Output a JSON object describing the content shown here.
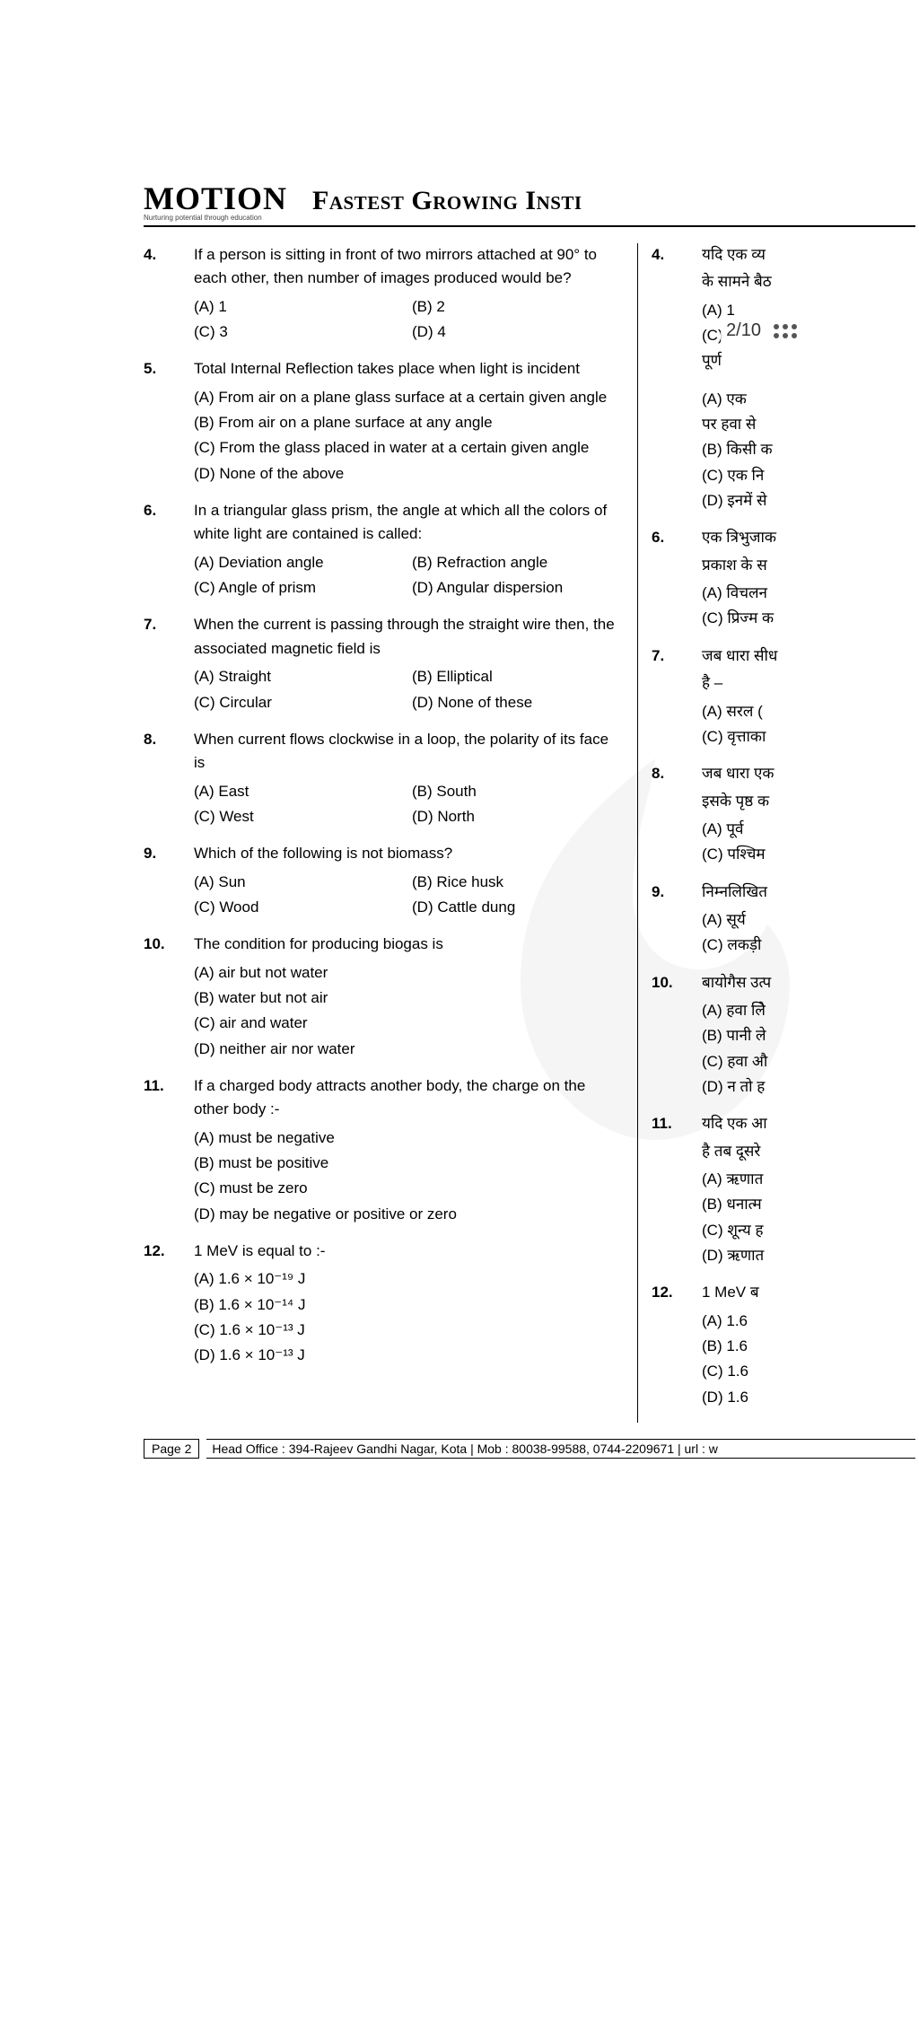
{
  "logo": {
    "main": "MOTION",
    "sub": "Nurturing potential through education"
  },
  "tagline": "Fastest Growing Insti",
  "page_indicator": "2/10",
  "footer": {
    "page_label": "Page 2",
    "text": "Head Office : 394-Rajeev Gandhi Nagar, Kota |  Mob : 80038-99588, 0744-2209671 |  url : w"
  },
  "left": [
    {
      "n": "4.",
      "stem": "If a person is sitting in front of two mirrors attached at 90° to each other, then number of images produced would be?",
      "opts": [
        "(A) 1",
        "(B) 2",
        "(C) 3",
        "(D) 4"
      ],
      "layout": "2"
    },
    {
      "n": "5.",
      "stem": "Total Internal Reflection takes place when light is incident",
      "opts": [
        "(A) From air on a plane glass surface at a certain given angle",
        "(B) From air on a plane surface at any angle",
        "(C) From the glass placed in water at a certain given angle",
        "(D) None of the above"
      ],
      "layout": "1"
    },
    {
      "n": "6.",
      "stem": "In a triangular glass prism, the angle at which all the colors of white light are contained is called:",
      "opts": [
        "(A) Deviation angle",
        "(B) Refraction angle",
        "(C) Angle of prism",
        "(D) Angular dispersion"
      ],
      "layout": "2"
    },
    {
      "n": "7.",
      "stem": "When the current is passing through the straight wire then, the associated magnetic field is",
      "opts": [
        "(A) Straight",
        "(B) Elliptical",
        "(C) Circular",
        "(D) None of these"
      ],
      "layout": "2"
    },
    {
      "n": "8.",
      "stem": "When current flows clockwise in a loop, the polarity of its face is",
      "opts": [
        "(A) East",
        "(B) South",
        "(C) West",
        "(D) North"
      ],
      "layout": "2"
    },
    {
      "n": "9.",
      "stem": "Which of the following is not biomass?",
      "opts": [
        "(A) Sun",
        "(B) Rice husk",
        "(C) Wood",
        "(D) Cattle dung"
      ],
      "layout": "2"
    },
    {
      "n": "10.",
      "stem": "The condition for producing biogas is",
      "opts": [
        "(A) air but not water",
        "(B) water but not air",
        "(C) air and water",
        "(D) neither air nor water"
      ],
      "layout": "1"
    },
    {
      "n": "11.",
      "stem": "If a charged body attracts another body, the charge on the other body :-",
      "opts": [
        "(A) must be negative",
        "(B) must be positive",
        "(C) must be zero",
        "(D) may be negative or positive or zero"
      ],
      "layout": "1"
    },
    {
      "n": "12.",
      "stem": "1 MeV is equal to :-",
      "opts": [
        "(A) 1.6 × 10⁻¹⁹ J",
        "(B) 1.6 × 10⁻¹⁴ J",
        "(C) 1.6 × 10⁻¹³ J",
        "(D) 1.6 × 10⁻¹³ J"
      ],
      "layout": "1"
    }
  ],
  "right": [
    {
      "n": "4.",
      "stem": "यदि एक व्य",
      "post": "के सामने बैठ",
      "opts": [
        "(A) 1",
        "(C)"
      ],
      "layout": "1",
      "trail": "पूर्ण"
    },
    {
      "n": "",
      "stem": "",
      "opts": [
        "(A) एक",
        "पर हवा से",
        "(B) किसी क",
        "(C) एक नि",
        "(D) इनमें से"
      ],
      "layout": "1"
    },
    {
      "n": "6.",
      "stem": "एक त्रिभुजाक",
      "post": "प्रकाश के स",
      "opts": [
        "(A) विचलन",
        "(C) प्रिज्म क"
      ],
      "layout": "1"
    },
    {
      "n": "7.",
      "stem": "जब धारा सीध",
      "post": "है –",
      "opts": [
        "(A) सरल (",
        "(C) वृत्ताका"
      ],
      "layout": "1"
    },
    {
      "n": "8.",
      "stem": "जब धारा एक",
      "post": "इसके पृष्ठ क",
      "opts": [
        "(A) पूर्व",
        "(C) पश्चिम"
      ],
      "layout": "1"
    },
    {
      "n": "9.",
      "stem": "निम्नलिखित",
      "opts": [
        "(A) सूर्य",
        "(C) लकड़ी"
      ],
      "layout": "1"
    },
    {
      "n": "10.",
      "stem": "बायोगैस उत्प",
      "opts": [
        "(A) हवा लेि",
        "(B) पानी ले",
        "(C) हवा औ",
        "(D) न तो ह"
      ],
      "layout": "1"
    },
    {
      "n": "11.",
      "stem": "यदि एक आ",
      "post": "है तब दूसरे",
      "opts": [
        "(A) ऋणात",
        "(B) धनात्म",
        "(C) शून्य ह",
        "(D) ऋणात"
      ],
      "layout": "1"
    },
    {
      "n": "12.",
      "stem": "1 MeV ब",
      "opts": [
        "(A) 1.6",
        "(B) 1.6",
        "(C) 1.6",
        "(D) 1.6"
      ],
      "layout": "1"
    }
  ]
}
